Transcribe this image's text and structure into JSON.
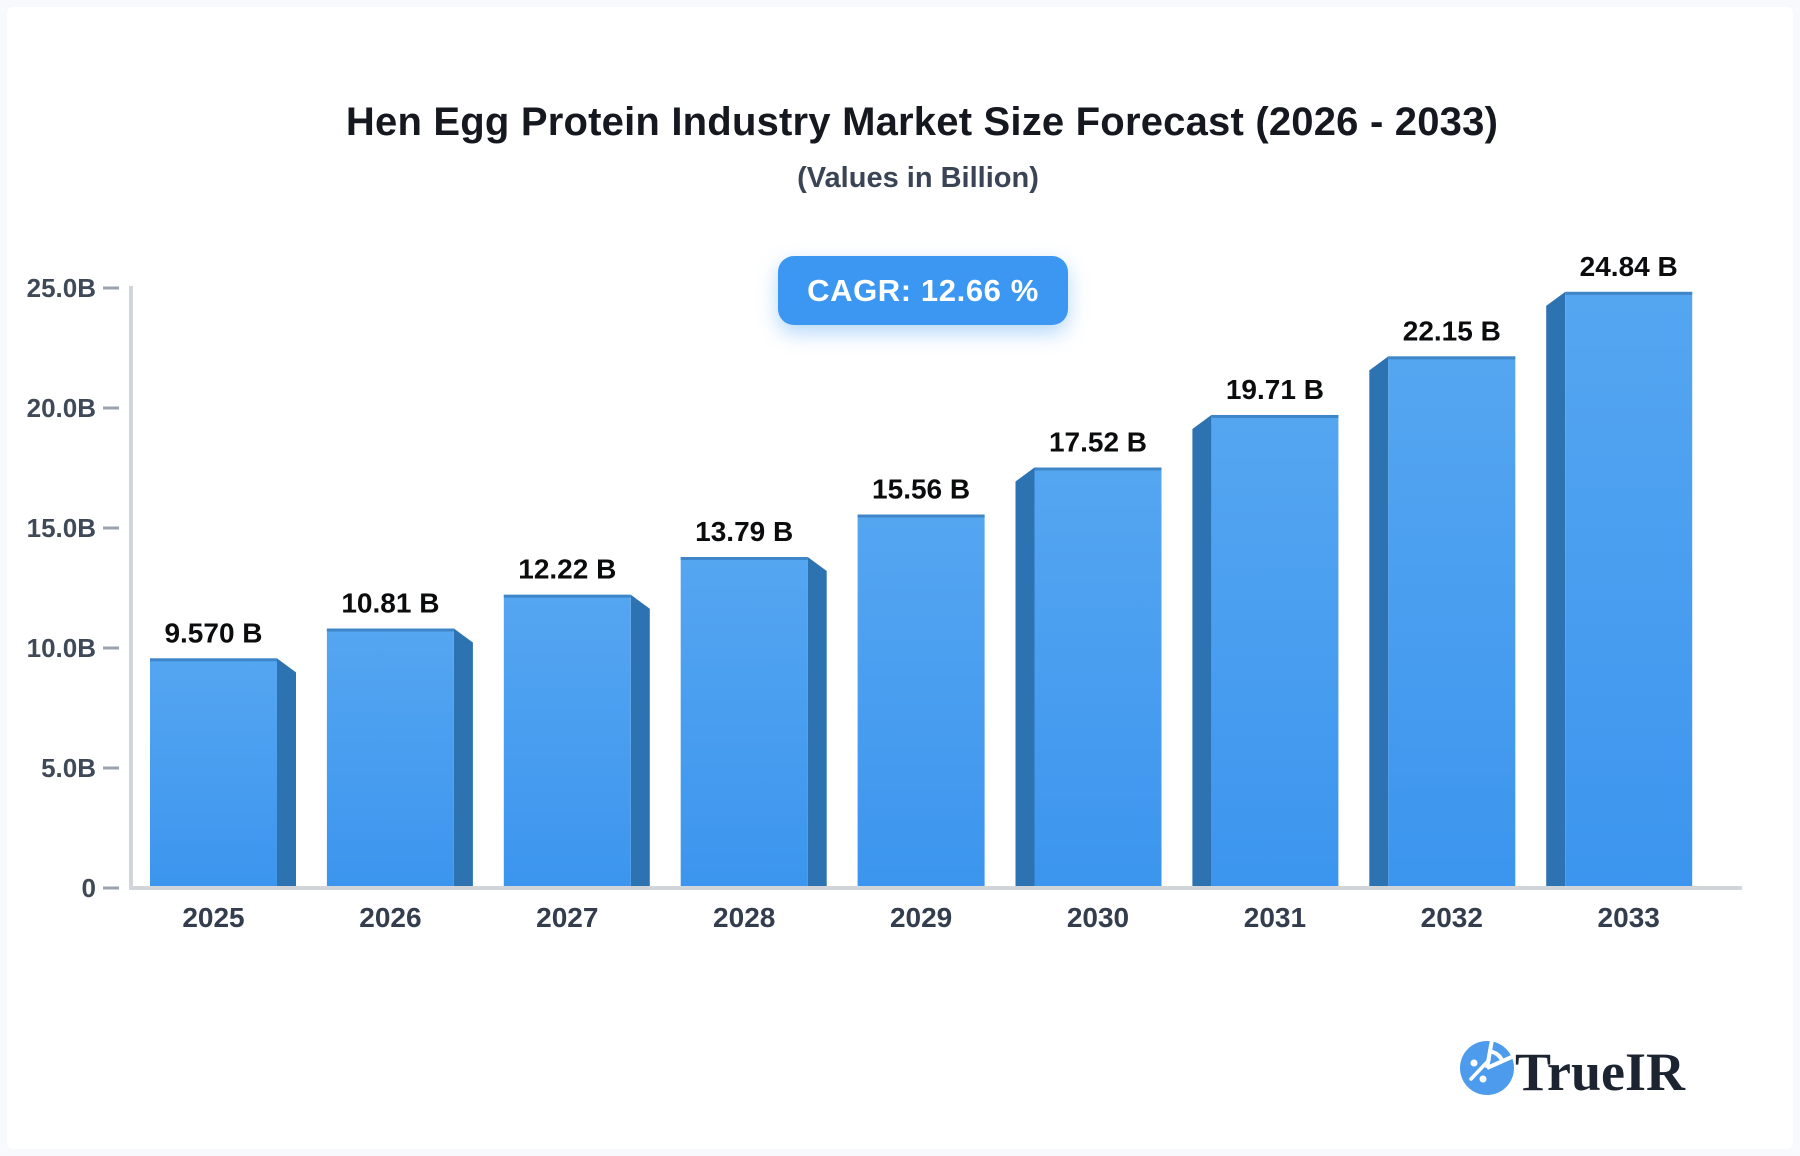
{
  "page": {
    "background": "#f7f9fc",
    "card_background": "#ffffff"
  },
  "header": {
    "title": "Hen Egg Protein Industry Market Size Forecast (2026 - 2033)",
    "subtitle": "(Values in Billion)"
  },
  "badge": {
    "label": "CAGR: 12.66 %",
    "background": "#3b97f1",
    "text_color": "#ffffff"
  },
  "chart_data": {
    "type": "bar",
    "title": "Hen Egg Protein Industry Market Size Forecast (2026 - 2033)",
    "subtitle": "(Values in Billion)",
    "categories": [
      "2025",
      "2026",
      "2027",
      "2028",
      "2029",
      "2030",
      "2031",
      "2032",
      "2033"
    ],
    "values": [
      9.57,
      10.81,
      12.22,
      13.79,
      15.56,
      17.52,
      19.71,
      22.15,
      24.84
    ],
    "value_labels": [
      "9.570 B",
      "10.81 B",
      "12.22 B",
      "13.79 B",
      "15.56 B",
      "17.52 B",
      "19.71 B",
      "22.15 B",
      "24.84 B"
    ],
    "xlabel": "",
    "ylabel": "",
    "ylim": [
      0,
      25
    ],
    "yticks": {
      "values": [
        0,
        5,
        10,
        15,
        20,
        25
      ],
      "labels": [
        "0",
        "5.0B",
        "10.0B",
        "15.0B",
        "20.0B",
        "25.0B"
      ]
    },
    "grid": false,
    "legend": "none",
    "bar_style": "3d-extruded, extrusion faces outward from center bar (right for 2025-2028, none for 2029, left for 2030-2033)",
    "colors": {
      "front_top": "#55a6f1",
      "front_bottom": "#3c95ee",
      "side": "#2d73b2",
      "top_edge": "#3f86c9",
      "axis": "#d2d5da",
      "tick": "#9aa2ac",
      "tick_label": "#3f4957",
      "xlabel_color": "#333d4d",
      "value_label": "#0b0c0e"
    }
  },
  "brand": {
    "name": "TrueIR",
    "icon": "pie-chart-icon",
    "icon_color": "#4d9bec",
    "text_color": "#1c2431"
  }
}
